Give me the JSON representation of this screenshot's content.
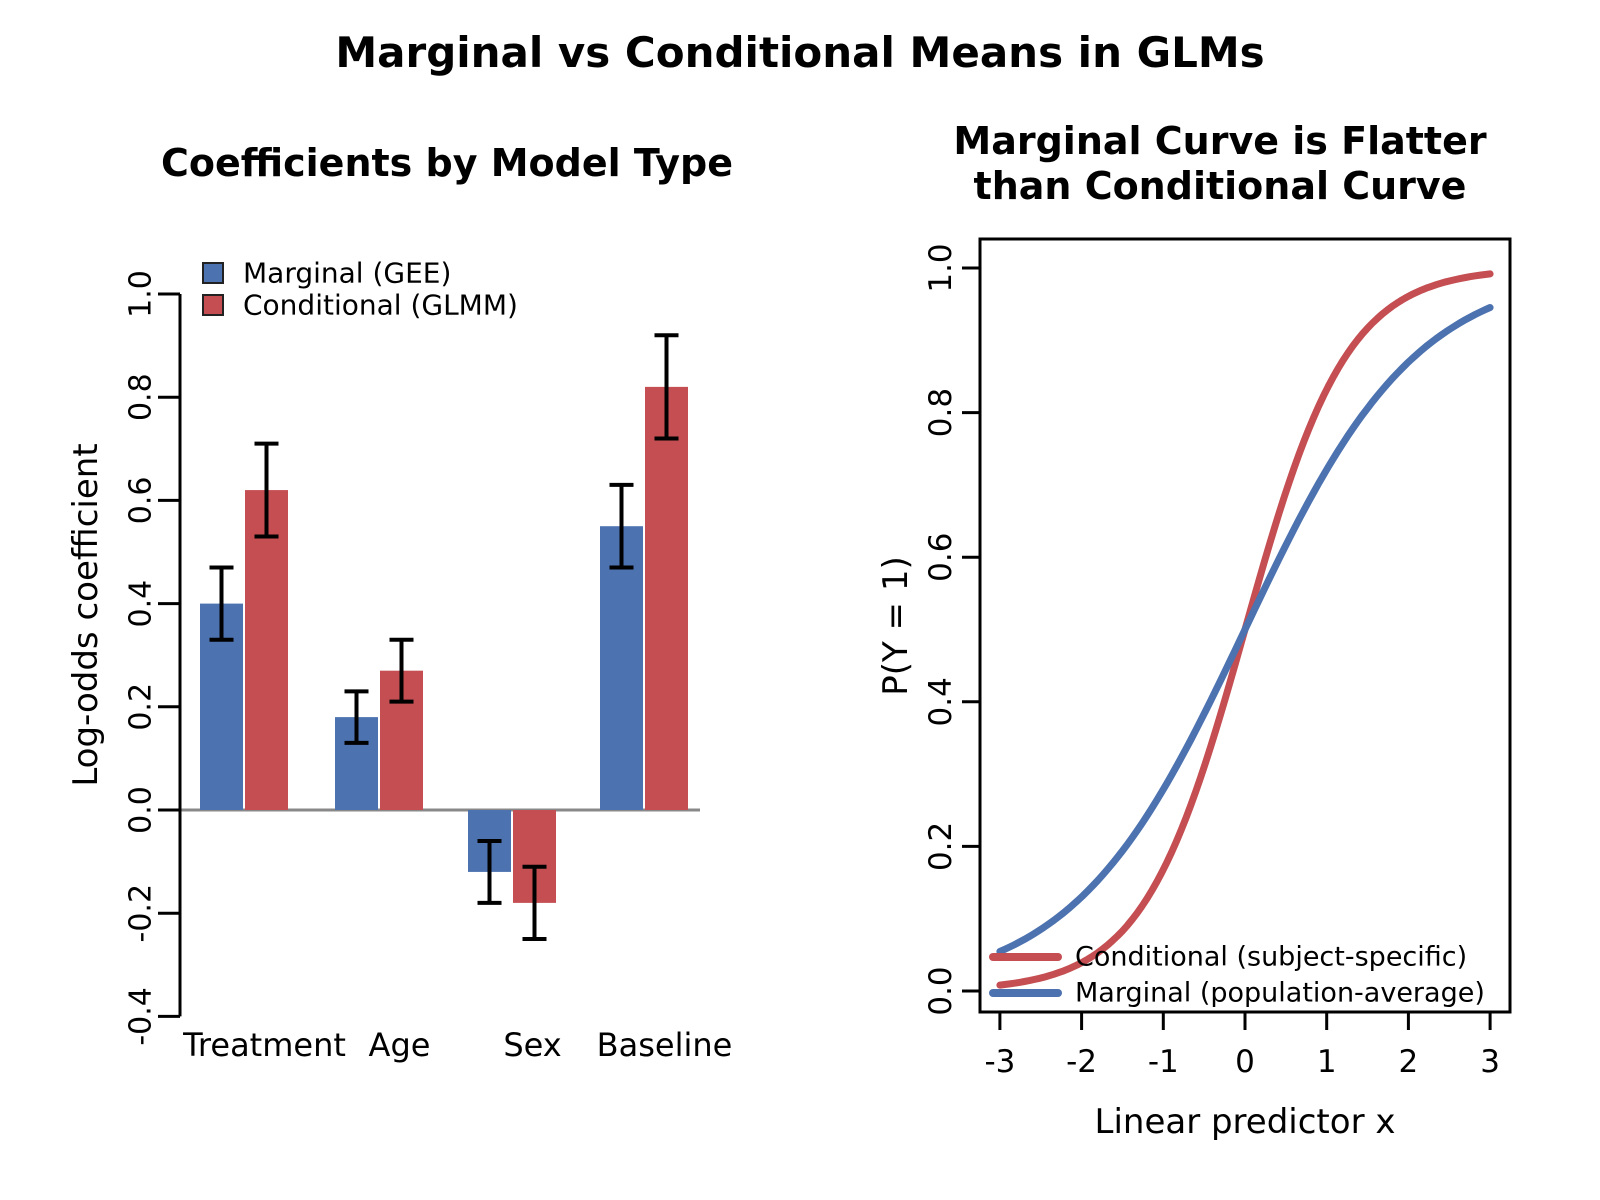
{
  "main_title": "Marginal vs Conditional Means in GLMs",
  "colors": {
    "blue": "#4C72B0",
    "red": "#C44E52",
    "error_bar": "#000000",
    "zero_line": "#888888",
    "axis": "#000000",
    "background": "#ffffff"
  },
  "chart_data": [
    {
      "type": "bar",
      "title": "Coefficients by Model Type",
      "ylabel": "Log-odds coefficient",
      "categories": [
        "Treatment",
        "Age",
        "Sex",
        "Baseline"
      ],
      "series": [
        {
          "name": "Marginal (GEE)",
          "color_key": "blue",
          "values": [
            0.4,
            0.18,
            -0.12,
            0.55
          ],
          "ci_low": [
            0.33,
            0.13,
            -0.18,
            0.47
          ],
          "ci_high": [
            0.47,
            0.23,
            -0.06,
            0.63
          ]
        },
        {
          "name": "Conditional (GLMM)",
          "color_key": "red",
          "values": [
            0.62,
            0.27,
            -0.18,
            0.82
          ],
          "ci_low": [
            0.53,
            0.21,
            -0.25,
            0.72
          ],
          "ci_high": [
            0.71,
            0.33,
            -0.11,
            0.92
          ]
        }
      ],
      "ylim": [
        -0.4,
        1.0
      ],
      "yticks": [
        1.0,
        0.8,
        0.6,
        0.4,
        0.2,
        0.0,
        -0.2,
        -0.4
      ],
      "grid": false,
      "legend_position": "top-left",
      "error_bars": true,
      "zero_line": true
    },
    {
      "type": "line",
      "title_lines": [
        "Marginal Curve is Flatter",
        "than Conditional Curve"
      ],
      "xlabel": "Linear predictor x",
      "ylabel": "P(Y = 1)",
      "xlim": [
        -3,
        3
      ],
      "ylim": [
        0.0,
        1.0
      ],
      "xticks": [
        -3,
        -2,
        -1,
        0,
        1,
        2,
        3
      ],
      "yticks": [
        0.0,
        0.2,
        0.4,
        0.6,
        0.8,
        1.0
      ],
      "grid": false,
      "legend_position": "bottom-left",
      "series": [
        {
          "name": "Conditional (subject-specific)",
          "color_key": "red",
          "model": "logistic",
          "slope": 1.6,
          "points": {
            "x": [
              -3,
              -2.5,
              -2,
              -1.5,
              -1,
              -0.5,
              0,
              0.5,
              1,
              1.5,
              2,
              2.5,
              3
            ],
            "y": [
              0.008,
              0.018,
              0.039,
              0.083,
              0.168,
              0.31,
              0.5,
              0.69,
              0.832,
              0.917,
              0.961,
              0.982,
              0.992
            ]
          }
        },
        {
          "name": "Marginal (population-average)",
          "color_key": "blue",
          "model": "logistic",
          "slope": 0.95,
          "points": {
            "x": [
              -3,
              -2.5,
              -2,
              -1.5,
              -1,
              -0.5,
              0,
              0.5,
              1,
              1.5,
              2,
              2.5,
              3
            ],
            "y": [
              0.055,
              0.085,
              0.13,
              0.194,
              0.279,
              0.383,
              0.5,
              0.617,
              0.721,
              0.806,
              0.87,
              0.915,
              0.945
            ]
          }
        }
      ]
    }
  ]
}
